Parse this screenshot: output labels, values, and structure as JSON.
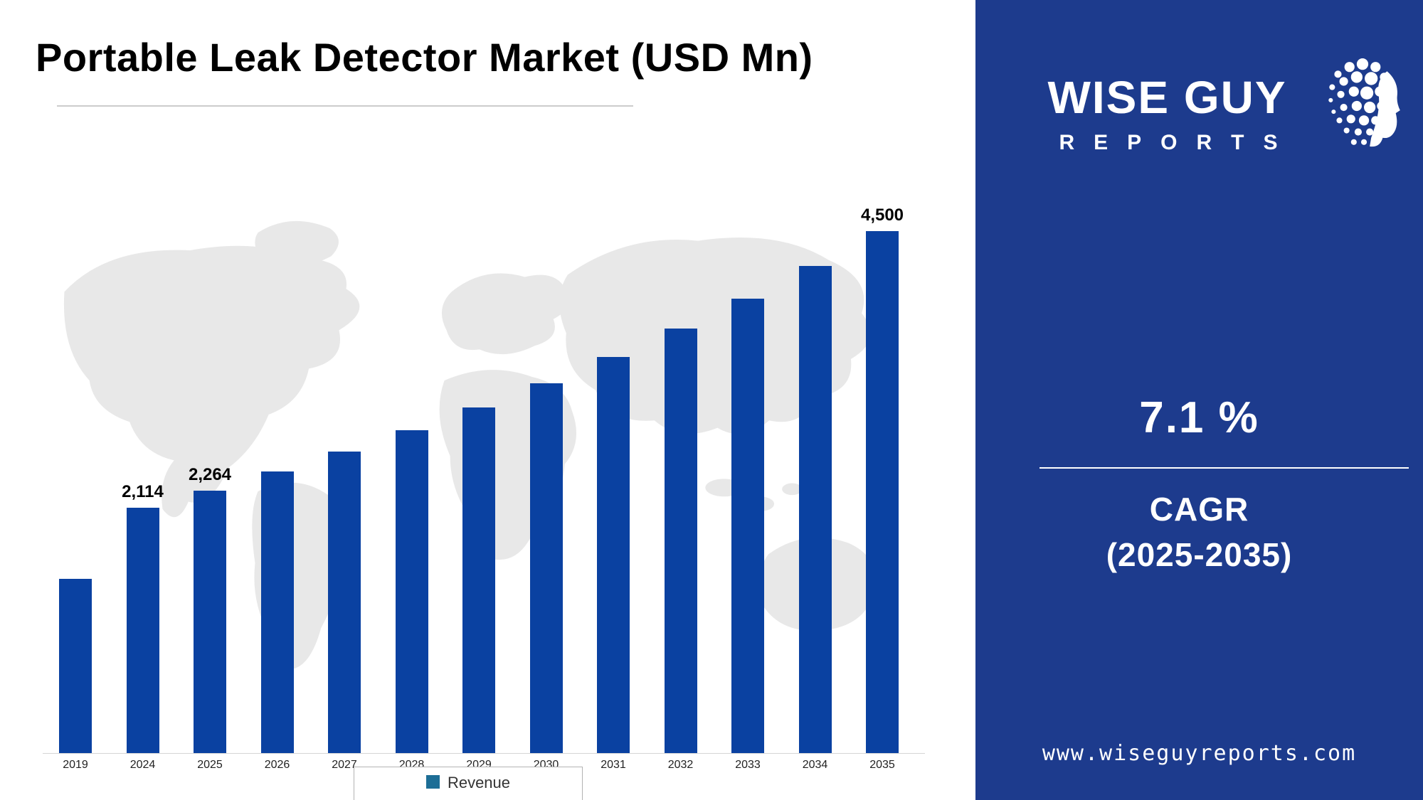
{
  "title": "Portable Leak Detector Market (USD Mn)",
  "chart_data": {
    "type": "bar",
    "title": "Portable Leak Detector Market (USD Mn)",
    "xlabel": "",
    "ylabel": "Revenue (USD Mn)",
    "categories": [
      "2019",
      "2024",
      "2025",
      "2026",
      "2027",
      "2028",
      "2029",
      "2030",
      "2031",
      "2032",
      "2033",
      "2034",
      "2035"
    ],
    "values": [
      1500,
      2114,
      2264,
      2425,
      2597,
      2781,
      2979,
      3190,
      3417,
      3659,
      3919,
      4197,
      4500
    ],
    "bar_labels": [
      "",
      "2,114",
      "2,264",
      "",
      "",
      "",
      "",
      "",
      "",
      "",
      "",
      "",
      "4,500"
    ],
    "legend": [
      "Revenue"
    ],
    "ylim": [
      0,
      4500
    ],
    "grid": false,
    "legend_position": "bottom"
  },
  "colors": {
    "bar": "#0a41a1",
    "panel_bg": "#1d3b8d",
    "legend_swatch": "#1d6e96",
    "map": "#e8e8e8",
    "divider": "#cccccc"
  },
  "panel": {
    "logo_line1": "WISE GUY",
    "logo_line2": "REPORTS",
    "cagr_value": "7.1 %",
    "cagr_label": "CAGR",
    "cagr_range": "(2025-2035)",
    "website": "www.wiseguyreports.com"
  }
}
